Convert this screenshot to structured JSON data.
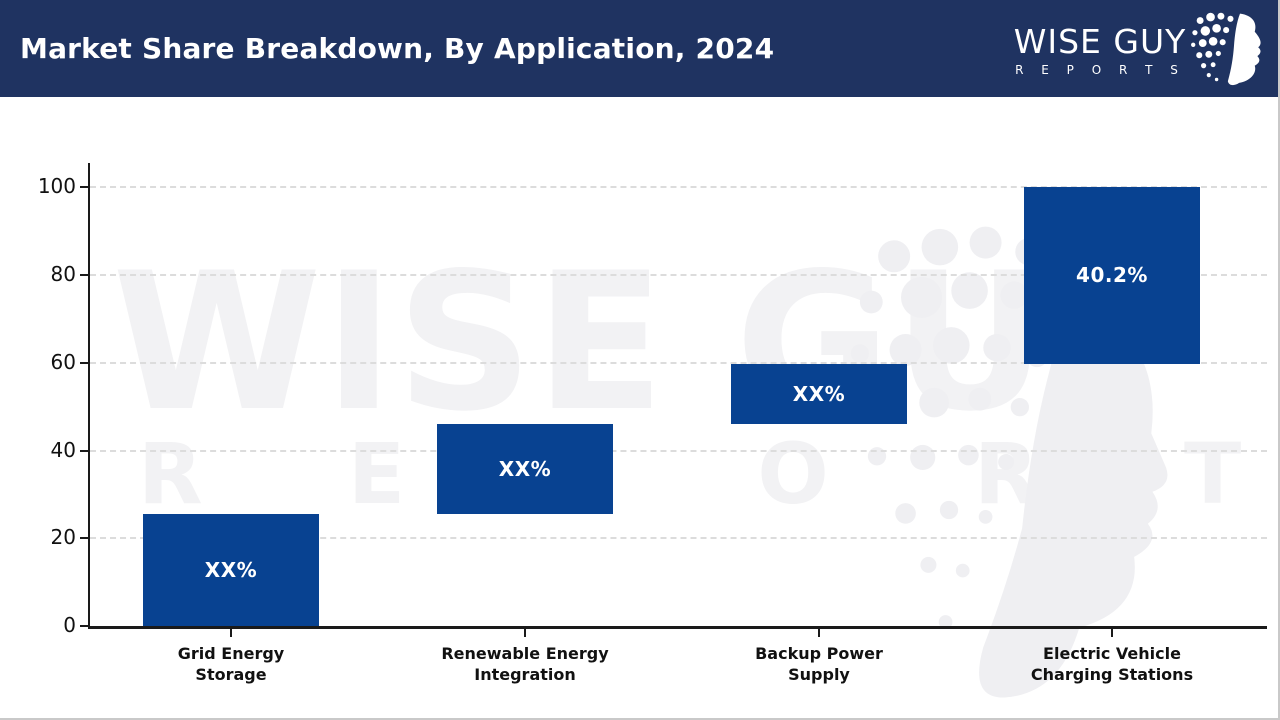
{
  "header": {
    "title": "Market Share Breakdown, By Application, 2024",
    "logo": {
      "name": "WISE GUY",
      "subtitle": "R E P O R T S"
    }
  },
  "watermark": {
    "line1": "WISE GUY",
    "line2": "R E P O R T S"
  },
  "chart_data": {
    "type": "bar",
    "variant": "waterfall",
    "title": "Market Share Breakdown, By Application, 2024",
    "categories": [
      "Grid Energy\nStorage",
      "Renewable Energy\nIntegration",
      "Backup Power\nSupply",
      "Electric Vehicle\nCharging Stations"
    ],
    "segments": [
      {
        "category": "Grid Energy Storage",
        "start": 0,
        "end": 25.6,
        "value_label": "XX%"
      },
      {
        "category": "Renewable Energy Integration",
        "start": 25.6,
        "end": 46.1,
        "value_label": "XX%"
      },
      {
        "category": "Backup Power Supply",
        "start": 46.1,
        "end": 59.8,
        "value_label": "XX%"
      },
      {
        "category": "Electric Vehicle Charging Stations",
        "start": 59.8,
        "end": 100,
        "value_label": "40.2%"
      }
    ],
    "yticks": [
      0,
      20,
      40,
      60,
      80,
      100
    ],
    "ylim": [
      0,
      105
    ],
    "xlabel": "",
    "ylabel": "",
    "grid": "horizontal dashed",
    "legend": "none",
    "bar_color": "#084291",
    "value_label_color": "#ffffff"
  },
  "colors": {
    "header_bg": "#1f3361",
    "bar": "#084291",
    "axis": "#1a1a1a",
    "gridline": "#dcdcdc",
    "watermark": "#f2f2f4",
    "title_text": "#ffffff",
    "page_border": "#c9c9c9"
  }
}
